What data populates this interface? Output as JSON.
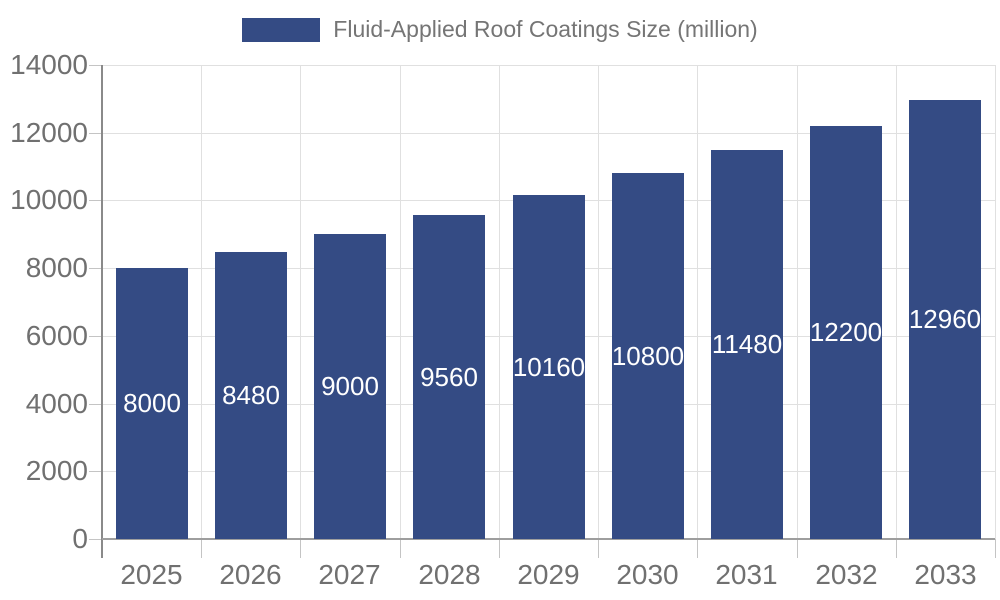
{
  "chart_data": {
    "type": "bar",
    "legend_label": "Fluid-Applied Roof Coatings Size (million)",
    "legend_position": "top",
    "categories": [
      "2025",
      "2026",
      "2027",
      "2028",
      "2029",
      "2030",
      "2031",
      "2032",
      "2033"
    ],
    "series": [
      {
        "name": "Fluid-Applied Roof Coatings Size (million)",
        "values": [
          8000,
          8480,
          9000,
          9560,
          10160,
          10800,
          11480,
          12200,
          12960
        ]
      }
    ],
    "value_labels": [
      "8000",
      "8480",
      "9000",
      "9560",
      "10160",
      "10800",
      "11480",
      "12200",
      "12960"
    ],
    "ylim": [
      0,
      14000
    ],
    "yticks": [
      0,
      2000,
      4000,
      6000,
      8000,
      10000,
      12000,
      14000
    ],
    "grid": true,
    "colors": {
      "bar": "#344b84",
      "grid": "#e0e0e0",
      "tick": "#c4c4c4",
      "axis_x": "#9e9e9e",
      "axis_y": "#8a8a8a",
      "axis_text": "#707070",
      "legend_text": "#757575",
      "value_label": "#ffffff",
      "background": "#ffffff"
    }
  }
}
